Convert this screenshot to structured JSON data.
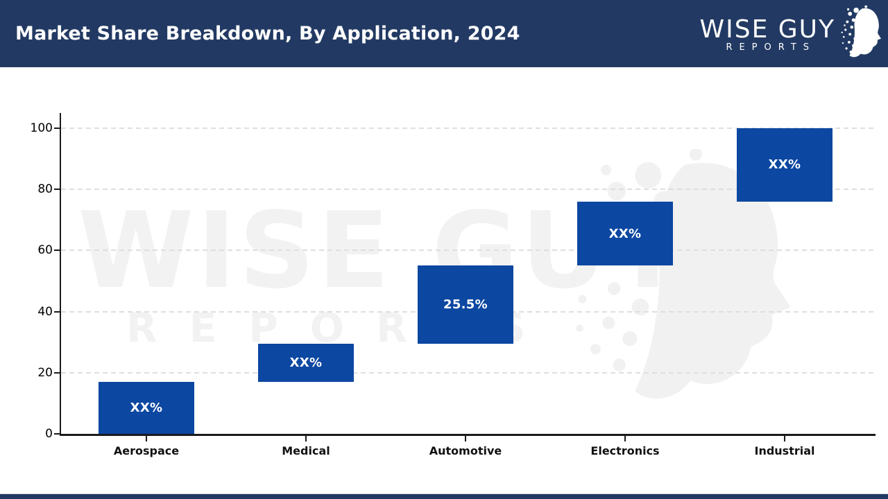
{
  "header": {
    "title": "Market Share Breakdown, By Application, 2024",
    "logo": {
      "primary": "WISE GUY",
      "secondary": "REPORTS"
    }
  },
  "watermark": {
    "primary": "WISE GUY",
    "secondary": "REPORTS"
  },
  "colors": {
    "header_bg": "#223A63",
    "footer_bg": "#223A63",
    "bar_fill": "#0C47A1",
    "bar_label_text": "#FFFFFF",
    "gridline": "#DEDEDE",
    "axis": "#1A1A1A",
    "watermark": "#F2F2F2"
  },
  "chart_data": {
    "type": "bar",
    "variant": "waterfall",
    "title": "Market Share Breakdown, By Application, 2024",
    "categories": [
      "Aerospace",
      "Medical",
      "Automotive",
      "Electronics",
      "Industrial"
    ],
    "segments": [
      {
        "category": "Aerospace",
        "start": 0,
        "end": 17,
        "label": "XX%"
      },
      {
        "category": "Medical",
        "start": 17,
        "end": 29.5,
        "label": "XX%"
      },
      {
        "category": "Automotive",
        "start": 29.5,
        "end": 55,
        "label": "25.5%"
      },
      {
        "category": "Electronics",
        "start": 55,
        "end": 76,
        "label": "XX%"
      },
      {
        "category": "Industrial",
        "start": 76,
        "end": 100,
        "label": "XX%"
      }
    ],
    "yticks": [
      "0",
      "20",
      "40",
      "60",
      "80",
      "100"
    ],
    "ylim": [
      0,
      105
    ],
    "xlabel": "",
    "ylabel": "",
    "grid": {
      "horizontal": true,
      "style": "dashed"
    },
    "legend": "none"
  }
}
